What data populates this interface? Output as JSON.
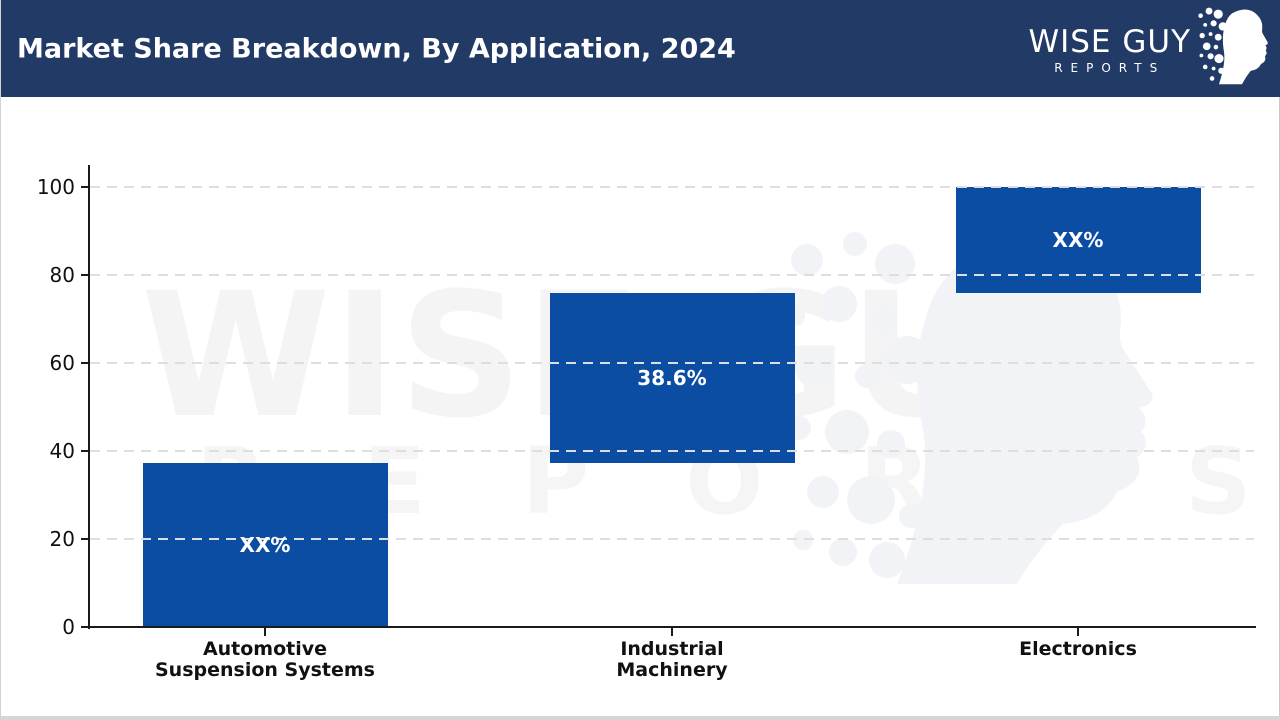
{
  "header": {
    "title": "Market Share Breakdown, By Application, 2024",
    "bg_color": "#223a66",
    "logo": {
      "line1": "WISE GUY",
      "line2": "REPORTS"
    }
  },
  "watermark": {
    "line1": "WISE GUY",
    "line2": "R E P O R T S"
  },
  "chart_data": {
    "type": "bar",
    "variant": "waterfall-floating-segments",
    "title": "Market Share Breakdown, By Application, 2024",
    "categories": [
      "Automotive Suspension Systems",
      "Industrial Machinery",
      "Electronics"
    ],
    "category_lines": [
      [
        "Automotive",
        "Suspension Systems"
      ],
      [
        "Industrial",
        "Machinery"
      ],
      [
        "Electronics"
      ]
    ],
    "segments": [
      {
        "category": "Automotive Suspension Systems",
        "start": 0,
        "end": 37.2,
        "label": "XX%"
      },
      {
        "category": "Industrial Machinery",
        "start": 37.2,
        "end": 75.8,
        "label": "38.6%"
      },
      {
        "category": "Electronics",
        "start": 75.8,
        "end": 100,
        "label": "XX%"
      }
    ],
    "y_ticks": [
      0,
      20,
      40,
      60,
      80,
      100
    ],
    "ylim": [
      0,
      105
    ],
    "xlabel": "",
    "ylabel": "",
    "grid": "dashed-horizontal",
    "grid_above_bars": true,
    "legend": "none",
    "bar_color": "#0b4da2",
    "bar_label_color": "#ffffff",
    "axis_color": "#1a1a1a"
  }
}
